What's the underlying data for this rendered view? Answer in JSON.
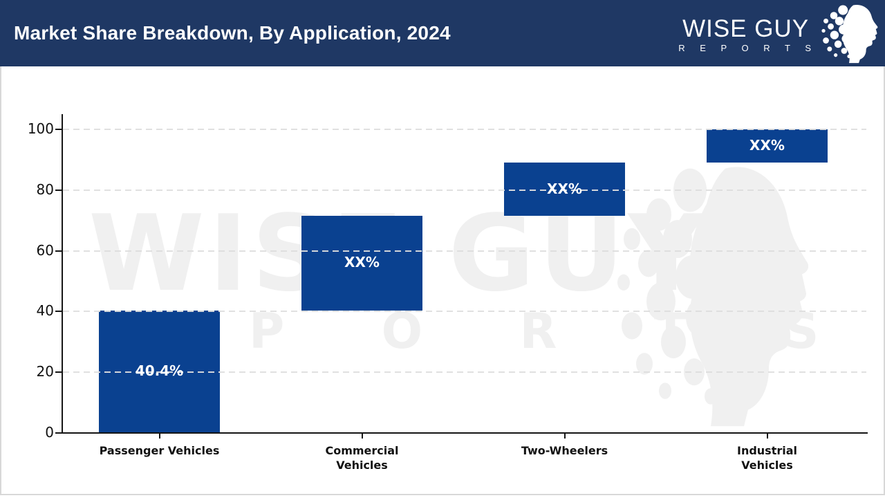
{
  "header": {
    "title": "Market Share Breakdown, By Application, 2024",
    "bg_color": "#1f3864",
    "text_color": "#ffffff",
    "logo": {
      "line1": "WISE GUY",
      "line2": "R E P O R T S"
    }
  },
  "watermark": {
    "line1": "WISE GUY",
    "line2": "P O R T S"
  },
  "chart_data": {
    "type": "bar",
    "subtype": "waterfall",
    "title": "Market Share Breakdown, By Application, 2024",
    "categories": [
      [
        "Passenger Vehicles"
      ],
      [
        "Commercial",
        "Vehicles"
      ],
      [
        "Two-Wheelers"
      ],
      [
        "Industrial",
        "Vehicles"
      ]
    ],
    "segments": [
      {
        "label": "Passenger Vehicles",
        "start": 0,
        "end": 40.4,
        "value": 40.4,
        "display": "40.4%"
      },
      {
        "label": "Commercial Vehicles",
        "start": 40.4,
        "end": 71.5,
        "value": 31.1,
        "display": "XX%"
      },
      {
        "label": "Two-Wheelers",
        "start": 71.5,
        "end": 89.0,
        "value": 17.5,
        "display": "XX%"
      },
      {
        "label": "Industrial Vehicles",
        "start": 89.0,
        "end": 100.0,
        "value": 11.0,
        "display": "XX%"
      }
    ],
    "yticks": [
      0,
      20,
      40,
      60,
      80,
      100
    ],
    "ylim": [
      0,
      100
    ],
    "xlabel": "",
    "ylabel": "",
    "grid": true,
    "legend": "none",
    "bar_color": "#0a4190",
    "bar_label_color": "#ffffff",
    "axis_color": "#151515"
  }
}
